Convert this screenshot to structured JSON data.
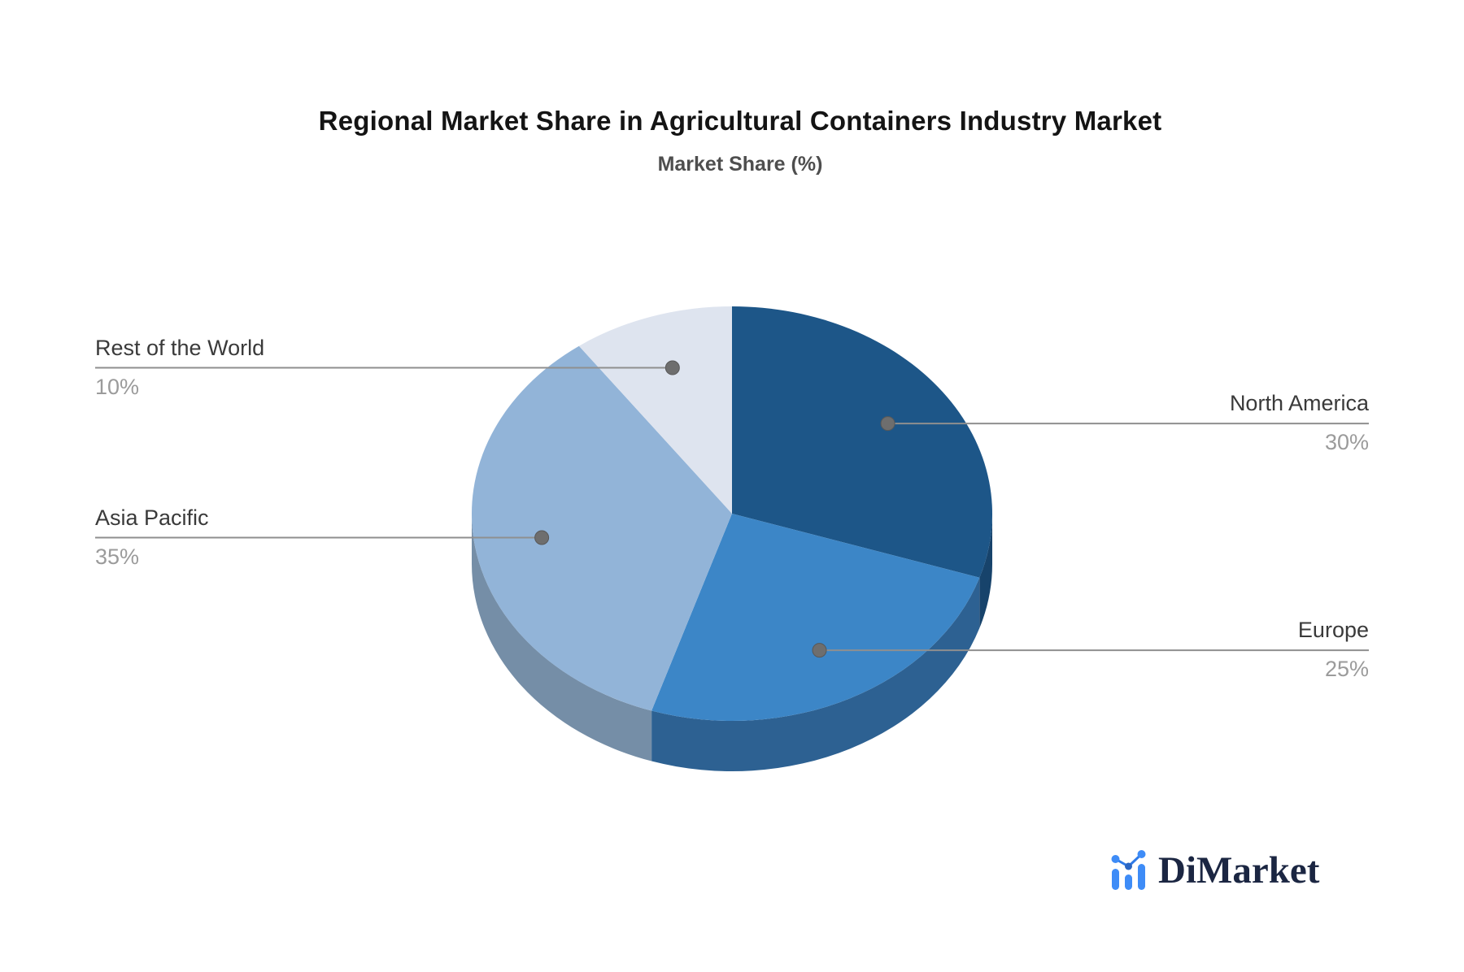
{
  "chart_data": {
    "type": "pie",
    "style": "3d-depth",
    "title": "Regional Market Share in Agricultural Containers Industry Market",
    "subtitle": "Market Share (%)",
    "unit": "%",
    "labels": [
      "North America",
      "Europe",
      "Asia Pacific",
      "Rest of the World"
    ],
    "values": [
      30,
      25,
      35,
      10
    ],
    "rotation": "starts at 12 o'clock, clockwise",
    "legend": "none",
    "slice_colors": [
      "#1D5688",
      "#3C86C7",
      "#92B4D8",
      "#DEE4EF"
    ],
    "slice_side_colors": [
      "#17436B",
      "#2D6192",
      "#758EA7",
      "#B9C2D4"
    ],
    "callout_line_color": "#8F8F8F",
    "callout_dot_color": "#6E6E6E",
    "label_text_color": "#3A3A3A",
    "value_text_color": "#9B9B9B"
  },
  "callouts": [
    {
      "label": "North America",
      "value_label": "30%",
      "side": "right"
    },
    {
      "label": "Europe",
      "value_label": "25%",
      "side": "right"
    },
    {
      "label": "Asia Pacific",
      "value_label": "35%",
      "side": "left"
    },
    {
      "label": "Rest of the World",
      "value_label": "10%",
      "side": "left"
    }
  ],
  "brand": {
    "name": "DiMarket",
    "icon": "bar-line-chart-icon",
    "icon_color": "#3E8CF7",
    "text_color": "#1B2642"
  }
}
